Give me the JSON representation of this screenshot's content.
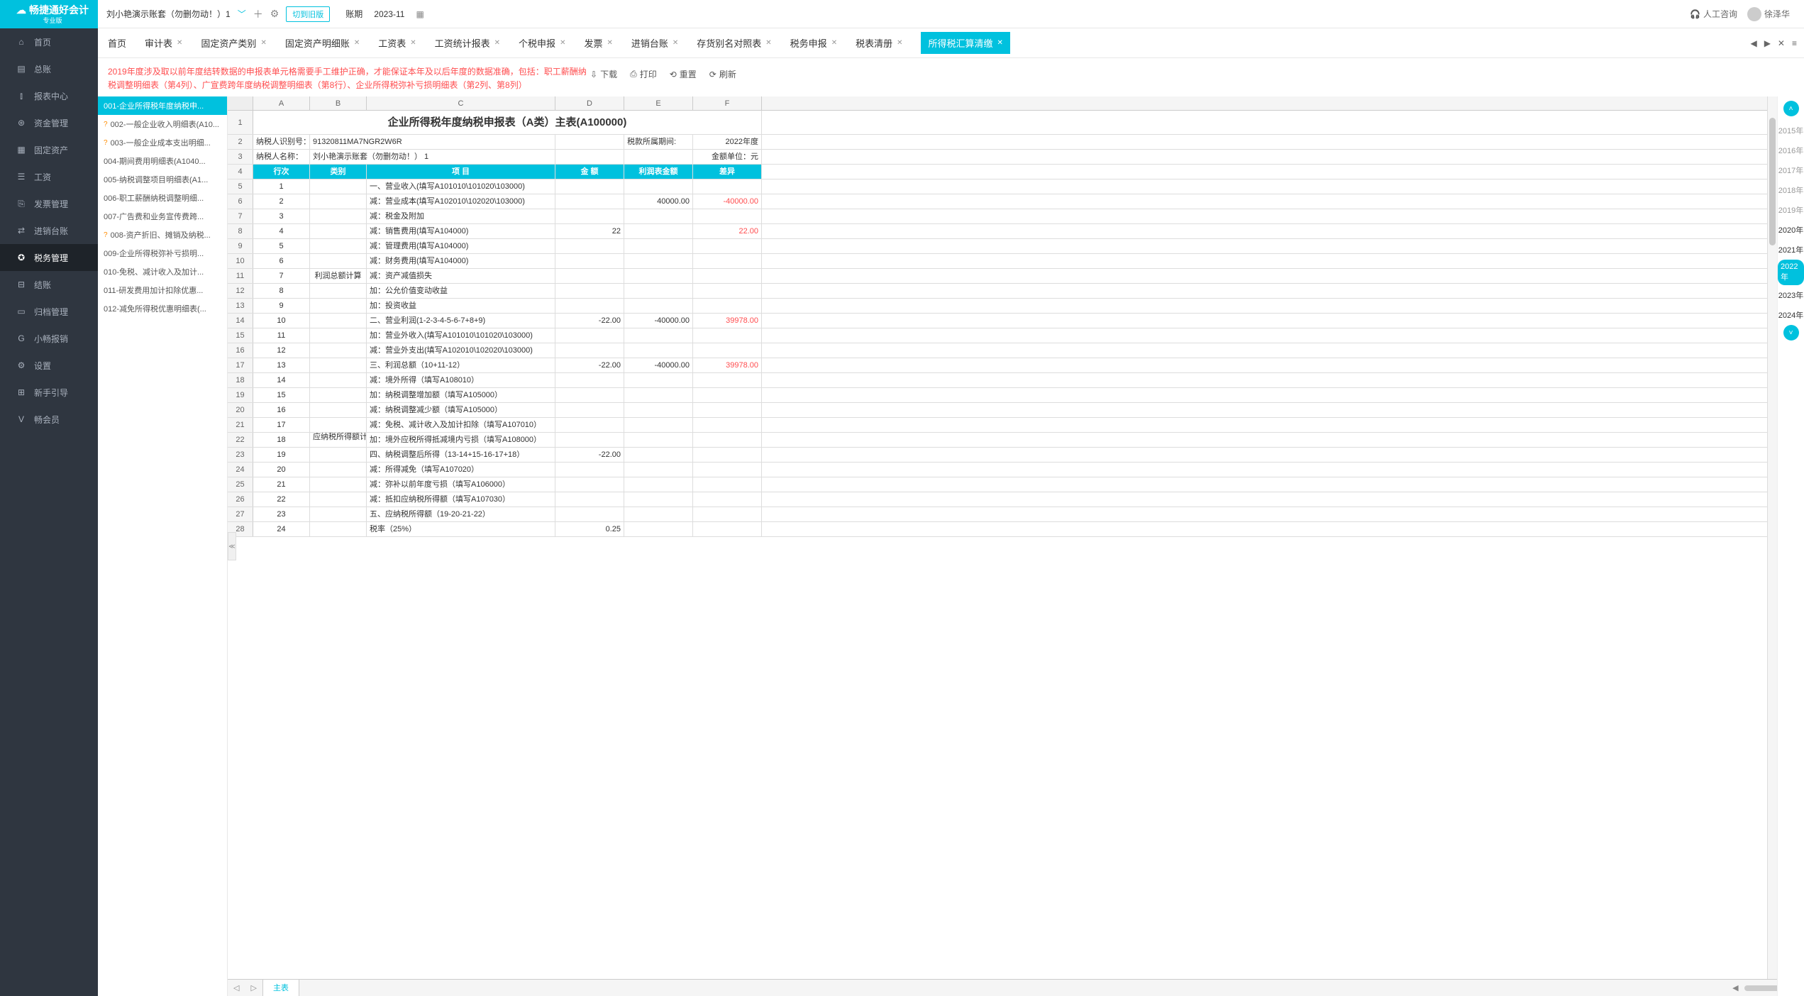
{
  "top": {
    "logo": "畅捷通好会计",
    "edition": "专业版",
    "account": "刘小艳演示账套（勿删勿动！）1",
    "old_version": "切到旧版",
    "period_label": "账期",
    "period_value": "2023-11",
    "consult": "人工咨询",
    "user": "徐泽华"
  },
  "nav": [
    {
      "icon": "⌂",
      "label": "首页"
    },
    {
      "icon": "▤",
      "label": "总账"
    },
    {
      "icon": "⫾",
      "label": "报表中心"
    },
    {
      "icon": "⊛",
      "label": "资金管理"
    },
    {
      "icon": "▦",
      "label": "固定资产"
    },
    {
      "icon": "☰",
      "label": "工资"
    },
    {
      "icon": "⎘",
      "label": "发票管理"
    },
    {
      "icon": "⇄",
      "label": "进销台账"
    },
    {
      "icon": "✪",
      "label": "税务管理"
    },
    {
      "icon": "⊟",
      "label": "结账"
    },
    {
      "icon": "▭",
      "label": "归档管理"
    },
    {
      "icon": "G",
      "label": "小畅报销"
    },
    {
      "icon": "⚙",
      "label": "设置"
    },
    {
      "icon": "⊞",
      "label": "新手引导"
    },
    {
      "icon": "V",
      "label": "畅会员"
    }
  ],
  "nav_active": 8,
  "tabs": {
    "items": [
      "首页",
      "审计表",
      "固定资产类别",
      "固定资产明细账",
      "工资表",
      "工资统计报表",
      "个税申报",
      "发票",
      "进销台账",
      "存货别名对照表",
      "税务申报",
      "税表清册",
      "所得税汇算清缴"
    ],
    "active": 12
  },
  "warning": "2019年度涉及取以前年度结转数据的申报表单元格需要手工维护正确，才能保证本年及以后年度的数据准确，包括：职工薪酬纳税调整明细表（第4列）、广宣费跨年度纳税调整明细表（第8行）、企业所得税弥补亏损明细表（第2列、第8列）",
  "toolbar": {
    "download": "下载",
    "print": "打印",
    "reset": "重置",
    "refresh": "刷新"
  },
  "report_list": [
    {
      "label": "001-企业所得税年度纳税申...",
      "mark": ""
    },
    {
      "label": "002-一般企业收入明细表(A10...",
      "mark": "?"
    },
    {
      "label": "003-一般企业成本支出明细...",
      "mark": "?"
    },
    {
      "label": "004-期间费用明细表(A1040...",
      "mark": ""
    },
    {
      "label": "005-纳税调整项目明细表(A1...",
      "mark": ""
    },
    {
      "label": "006-职工薪酬纳税调整明细...",
      "mark": ""
    },
    {
      "label": "007-广告费和业务宣传费跨...",
      "mark": ""
    },
    {
      "label": "008-资产折旧、摊销及纳税...",
      "mark": "?"
    },
    {
      "label": "009-企业所得税弥补亏损明...",
      "mark": ""
    },
    {
      "label": "010-免税、减计收入及加计...",
      "mark": ""
    },
    {
      "label": "011-研发费用加计扣除优惠...",
      "mark": ""
    },
    {
      "label": "012-减免所得税优惠明细表(...",
      "mark": ""
    }
  ],
  "report_active": 0,
  "sheet": {
    "cols": [
      "A",
      "B",
      "C",
      "D",
      "E",
      "F"
    ],
    "title": "企业所得税年度纳税申报表（A类）主表(A100000)",
    "taxpayer_id_label": "纳税人识别号：",
    "taxpayer_id": "91320811MA7NGR2W6R",
    "period_label": "税款所属期间:",
    "period_value": "2022年度",
    "taxpayer_name_label": "纳税人名称：",
    "taxpayer_name": "刘小艳演示账套（勿删勿动！） 1",
    "unit_label": "金额单位：元",
    "headers": {
      "a": "行次",
      "b": "类别",
      "c": "项  目",
      "d": "金  额",
      "e": "利润表金额",
      "f": "差异"
    },
    "group1": "利润总额计算",
    "group2": "应纳税所得额计算",
    "rows": [
      {
        "n": "1",
        "c": "一、营业收入(填写A101010\\101020\\103000)",
        "d": "",
        "e": "",
        "f": ""
      },
      {
        "n": "2",
        "c": "减：营业成本(填写A102010\\102020\\103000)",
        "d": "",
        "e": "40000.00",
        "f": "-40000.00",
        "fred": true
      },
      {
        "n": "3",
        "c": "减：税金及附加",
        "d": "",
        "e": "",
        "f": ""
      },
      {
        "n": "4",
        "c": "减：销售费用(填写A104000)",
        "d": "22",
        "e": "",
        "f": "22.00",
        "fred": true
      },
      {
        "n": "5",
        "c": "减：管理费用(填写A104000)",
        "d": "",
        "e": "",
        "f": ""
      },
      {
        "n": "6",
        "c": "减：财务费用(填写A104000)",
        "d": "",
        "e": "",
        "f": ""
      },
      {
        "n": "7",
        "c": "减：资产减值损失",
        "d": "",
        "e": "",
        "f": ""
      },
      {
        "n": "8",
        "c": "加：公允价值变动收益",
        "d": "",
        "e": "",
        "f": ""
      },
      {
        "n": "9",
        "c": "加：投资收益",
        "d": "",
        "e": "",
        "f": ""
      },
      {
        "n": "10",
        "c": "二、营业利润(1-2-3-4-5-6-7+8+9)",
        "d": "-22.00",
        "e": "-40000.00",
        "f": "39978.00",
        "fred": true
      },
      {
        "n": "11",
        "c": "加：营业外收入(填写A101010\\101020\\103000)",
        "d": "",
        "e": "",
        "f": ""
      },
      {
        "n": "12",
        "c": "减：营业外支出(填写A102010\\102020\\103000)",
        "d": "",
        "e": "",
        "f": ""
      },
      {
        "n": "13",
        "c": "三、利润总额（10+11-12）",
        "d": "-22.00",
        "e": "-40000.00",
        "f": "39978.00",
        "fred": true
      },
      {
        "n": "14",
        "c": "减：境外所得（填写A108010）",
        "d": "",
        "e": "",
        "f": ""
      },
      {
        "n": "15",
        "c": "加：纳税调整增加额（填写A105000）",
        "d": "",
        "e": "",
        "f": ""
      },
      {
        "n": "16",
        "c": "减：纳税调整减少额（填写A105000）",
        "d": "",
        "e": "",
        "f": ""
      },
      {
        "n": "17",
        "c": "减：免税、减计收入及加计扣除（填写A107010）",
        "d": "",
        "e": "",
        "f": ""
      },
      {
        "n": "18",
        "c": "加：境外应税所得抵减境内亏损（填写A108000）",
        "d": "",
        "e": "",
        "f": ""
      },
      {
        "n": "19",
        "c": "四、纳税调整后所得（13-14+15-16-17+18）",
        "d": "-22.00",
        "e": "",
        "f": ""
      },
      {
        "n": "20",
        "c": "减：所得减免（填写A107020）",
        "d": "",
        "e": "",
        "f": ""
      },
      {
        "n": "21",
        "c": "减：弥补以前年度亏损（填写A106000）",
        "d": "",
        "e": "",
        "f": ""
      },
      {
        "n": "22",
        "c": "减：抵扣应纳税所得额（填写A107030）",
        "d": "",
        "e": "",
        "f": ""
      },
      {
        "n": "23",
        "c": "五、应纳税所得额（19-20-21-22）",
        "d": "",
        "e": "",
        "f": ""
      },
      {
        "n": "24",
        "c": "税率（25%）",
        "d": "0.25",
        "e": "",
        "f": ""
      }
    ],
    "group1_rows": 13,
    "tab_name": "主表"
  },
  "years": [
    "2015年",
    "2016年",
    "2017年",
    "2018年",
    "2019年",
    "2020年",
    "2021年",
    "2022年",
    "2023年",
    "2024年"
  ],
  "year_active": 7,
  "colors": {
    "primary": "#00c1de",
    "danger": "#ff4d4f",
    "nav_bg": "#2f3640"
  }
}
